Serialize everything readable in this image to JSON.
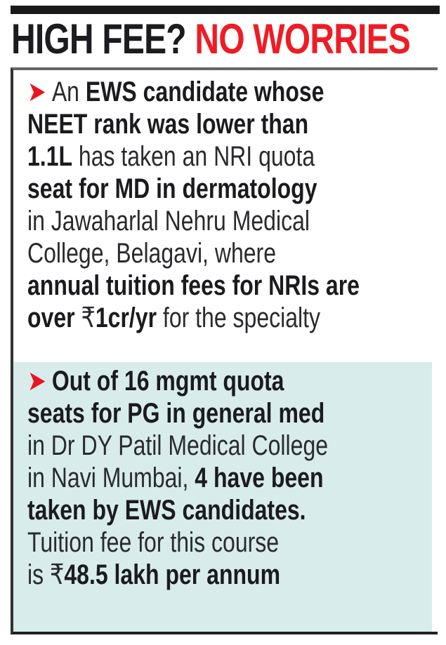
{
  "headline": {
    "part1": "HIGH FEE?",
    "part2": "NO WORRIES"
  },
  "colors": {
    "accent_red": "#ee1c25",
    "section2_bg": "#d8ecec"
  },
  "bullet_icon": "red-arrowhead",
  "sections": [
    {
      "lines": [
        [
          {
            "t": "An ",
            "b": false
          },
          {
            "t": "EWS candidate whose",
            "b": true
          }
        ],
        [
          {
            "t": "NEET rank was lower than",
            "b": true
          }
        ],
        [
          {
            "t": "1.1L",
            "b": true
          },
          {
            "t": " has taken an NRI quota",
            "b": false
          }
        ],
        [
          {
            "t": "seat for MD in dermatology",
            "b": true
          }
        ],
        [
          {
            "t": "in Jawaharlal Nehru Medical",
            "b": false
          }
        ],
        [
          {
            "t": "College, Belagavi, where",
            "b": false
          }
        ],
        [
          {
            "t": "annual tuition fees for NRIs are",
            "b": true
          }
        ],
        [
          {
            "t": "over ",
            "b": true
          },
          {
            "t": "₹",
            "b": false
          },
          {
            "t": "1cr/yr",
            "b": true
          },
          {
            "t": " for the specialty",
            "b": false
          }
        ]
      ]
    },
    {
      "lines": [
        [
          {
            "t": "Out of 16 mgmt quota",
            "b": true
          }
        ],
        [
          {
            "t": "seats for PG in general med",
            "b": true
          }
        ],
        [
          {
            "t": "in Dr DY Patil Medical College",
            "b": false
          }
        ],
        [
          {
            "t": "in Navi Mumbai, ",
            "b": false
          },
          {
            "t": "4 have been",
            "b": true
          }
        ],
        [
          {
            "t": "taken by EWS candidates.",
            "b": true
          }
        ],
        [
          {
            "t": "Tuition fee for this course",
            "b": false
          }
        ],
        [
          {
            "t": "is ",
            "b": false
          },
          {
            "t": "₹",
            "b": false
          },
          {
            "t": "48.5 lakh per annum",
            "b": true
          }
        ]
      ]
    }
  ]
}
